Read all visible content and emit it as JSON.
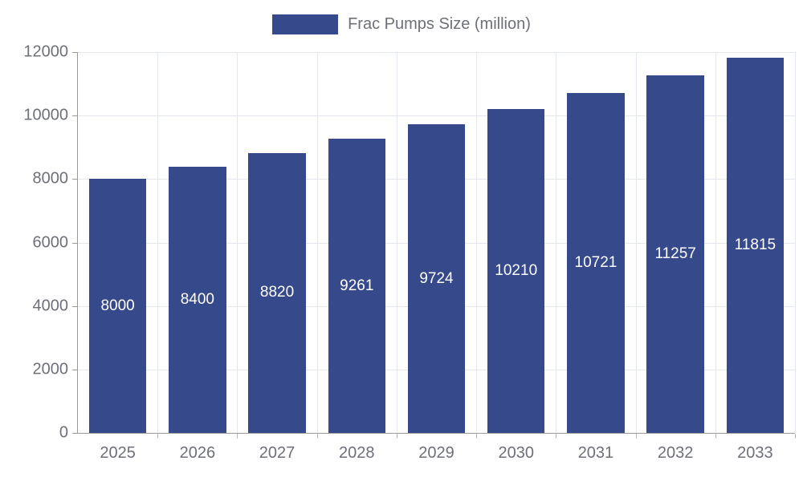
{
  "chart_data": {
    "type": "bar",
    "title": "",
    "legend": "Frac Pumps Size (million)",
    "legend_position": "top-center",
    "categories": [
      "2025",
      "2026",
      "2027",
      "2028",
      "2029",
      "2030",
      "2031",
      "2032",
      "2033"
    ],
    "values": [
      8000,
      8400,
      8820,
      9261,
      9724,
      10210,
      10721,
      11257,
      11815
    ],
    "value_labels": [
      "8000",
      "8400",
      "8820",
      "9261",
      "9724",
      "10210",
      "10721",
      "11257",
      "11815"
    ],
    "xlabel": "",
    "ylabel": "",
    "ylim": [
      0,
      12000
    ],
    "yticks": [
      0,
      2000,
      4000,
      6000,
      8000,
      10000,
      12000
    ],
    "ytick_labels": [
      "0",
      "2000",
      "4000",
      "6000",
      "8000",
      "10000",
      "12000"
    ],
    "grid": true,
    "colors": {
      "bar": "#36498a",
      "bar_label": "#ffffff",
      "axis_text": "#6e7079",
      "grid_line": "#e4e7ed",
      "axis_line": "#9a9a9a",
      "background": "#ffffff"
    }
  }
}
